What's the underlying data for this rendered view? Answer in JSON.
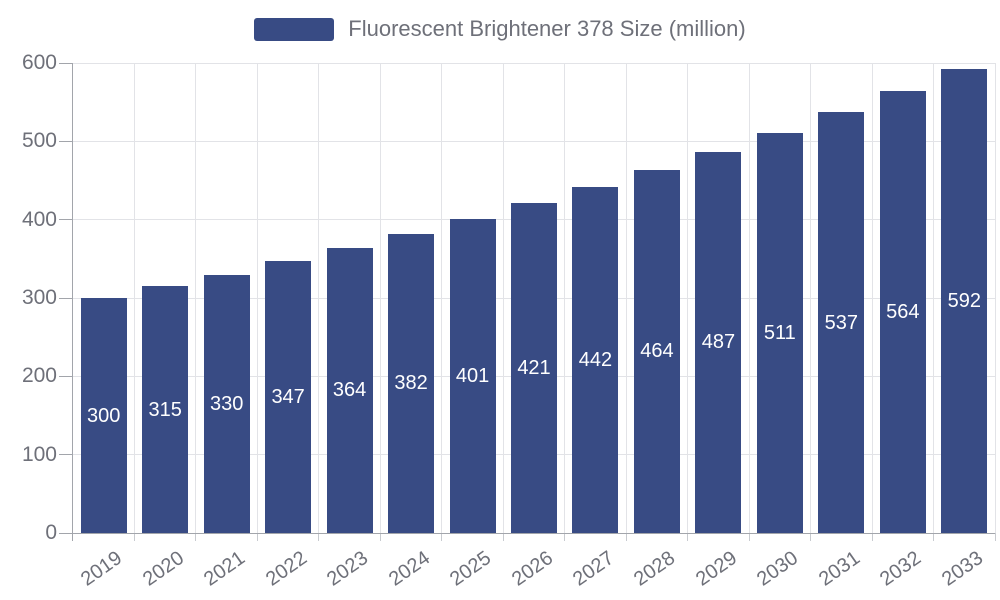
{
  "chart_data": {
    "type": "bar",
    "title": "Fluorescent Brightener 378 Size (million)",
    "series_name": "Fluorescent Brightener 378 Size (million)",
    "categories": [
      "2019",
      "2020",
      "2021",
      "2022",
      "2023",
      "2024",
      "2025",
      "2026",
      "2027",
      "2028",
      "2029",
      "2030",
      "2031",
      "2032",
      "2033"
    ],
    "values": [
      300,
      315,
      330,
      347,
      364,
      382,
      401,
      421,
      442,
      464,
      487,
      511,
      537,
      564,
      592
    ],
    "xlabel": "",
    "ylabel": "",
    "ylim": [
      0,
      600
    ],
    "y_ticks": [
      0,
      100,
      200,
      300,
      400,
      500,
      600
    ],
    "grid": true,
    "legend_position": "top-center",
    "x_label_rotation_deg": -35,
    "colors": {
      "bar": "#384B84",
      "bar_label": "#ffffff",
      "axis_text": "#6E7079",
      "legend_text": "#6E7079",
      "grid_line": "#e2e3e7",
      "axis_line": "#a2a5ab",
      "tick_line": "#c8cbd0"
    }
  }
}
